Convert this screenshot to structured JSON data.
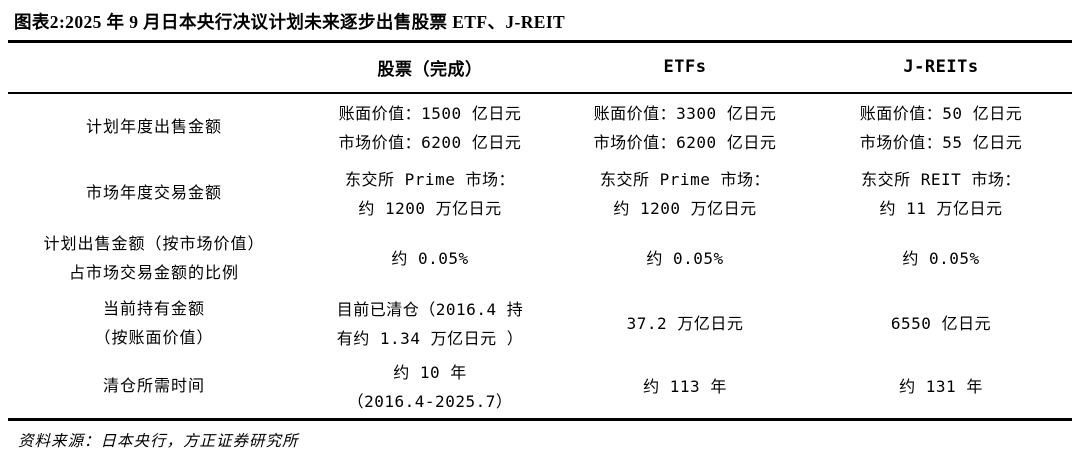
{
  "title": "图表2:2025 年 9 月日本央行决议计划未来逐步出售股票 ETF、J-REIT",
  "table": {
    "columns": [
      "",
      "股票（完成）",
      "ETFs",
      "J-REITs"
    ],
    "rows": [
      {
        "label": [
          "计划年度出售金额"
        ],
        "stocks": [
          "账面价值：1500 亿日元",
          "市场价值：6200 亿日元"
        ],
        "etfs": [
          "账面价值：3300 亿日元",
          "市场价值：6200 亿日元"
        ],
        "jreits": [
          "账面价值：50 亿日元",
          "市场价值：55 亿日元"
        ]
      },
      {
        "label": [
          "市场年度交易金额"
        ],
        "stocks": [
          "东交所 Prime 市场：",
          "约 1200 万亿日元"
        ],
        "etfs": [
          "东交所 Prime 市场：",
          "约 1200 万亿日元"
        ],
        "jreits": [
          "东交所 REIT 市场：",
          "约 11 万亿日元"
        ]
      },
      {
        "label": [
          "计划出售金额（按市场价值）",
          "占市场交易金额的比例"
        ],
        "stocks": [
          "约 0.05%"
        ],
        "etfs": [
          "约 0.05%"
        ],
        "jreits": [
          "约 0.05%"
        ]
      },
      {
        "label": [
          "当前持有金额",
          "（按账面价值）"
        ],
        "stocks": [
          "目前已清仓（2016.4 持",
          "有约 1.34 万亿日元 ）"
        ],
        "etfs": [
          "37.2 万亿日元"
        ],
        "jreits": [
          "6550 亿日元"
        ]
      },
      {
        "label": [
          "清仓所需时间"
        ],
        "stocks": [
          "约 10 年",
          "（2016.4-2025.7）"
        ],
        "etfs": [
          "约 113 年"
        ],
        "jreits": [
          "约 131 年"
        ]
      }
    ]
  },
  "footer": "资料来源：日本央行，方正证券研究所",
  "colors": {
    "text": "#000000",
    "background": "#ffffff",
    "rule": "#000000"
  }
}
